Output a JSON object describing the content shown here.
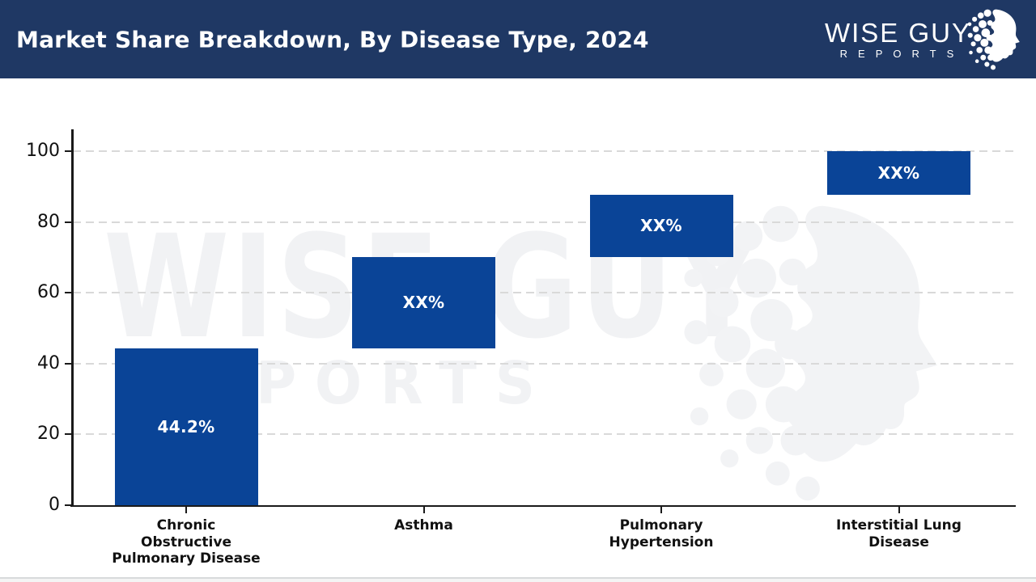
{
  "header": {
    "title": "Market Share Breakdown, By Disease Type, 2024",
    "bg_color": "#1f3864",
    "logo": {
      "line1": "WISE GUY",
      "line2": "REPORTS"
    }
  },
  "watermark": {
    "line1": "WISE GUY",
    "line2": "PORTS"
  },
  "chart_data": {
    "type": "bar",
    "subtype": "waterfall",
    "title": "Market Share Breakdown, By Disease Type, 2024",
    "categories": [
      "Chronic Obstructive Pulmonary Disease",
      "Asthma",
      "Pulmonary Hypertension",
      "Interstitial Lung Disease"
    ],
    "category_lines": [
      [
        "Chronic",
        "Obstructive",
        "Pulmonary Disease"
      ],
      [
        "Asthma"
      ],
      [
        "Pulmonary",
        "Hypertension"
      ],
      [
        "Interstitial Lung",
        "Disease"
      ]
    ],
    "segments": [
      {
        "category": "Chronic Obstructive Pulmonary Disease",
        "start": 0,
        "end": 44.2,
        "label": "44.2%"
      },
      {
        "category": "Asthma",
        "start": 44.2,
        "end": 70.2,
        "label": "XX%"
      },
      {
        "category": "Pulmonary Hypertension",
        "start": 70.2,
        "end": 87.6,
        "label": "XX%"
      },
      {
        "category": "Interstitial Lung Disease",
        "start": 87.6,
        "end": 100,
        "label": "XX%"
      }
    ],
    "xlabel": "",
    "ylabel": "",
    "yticks": [
      0,
      20,
      40,
      60,
      80,
      100
    ],
    "ylim": [
      0,
      105
    ],
    "grid": "horizontal-dashed",
    "legend": "none",
    "bar_color": "#0a4497",
    "bar_label_color": "#ffffff"
  }
}
